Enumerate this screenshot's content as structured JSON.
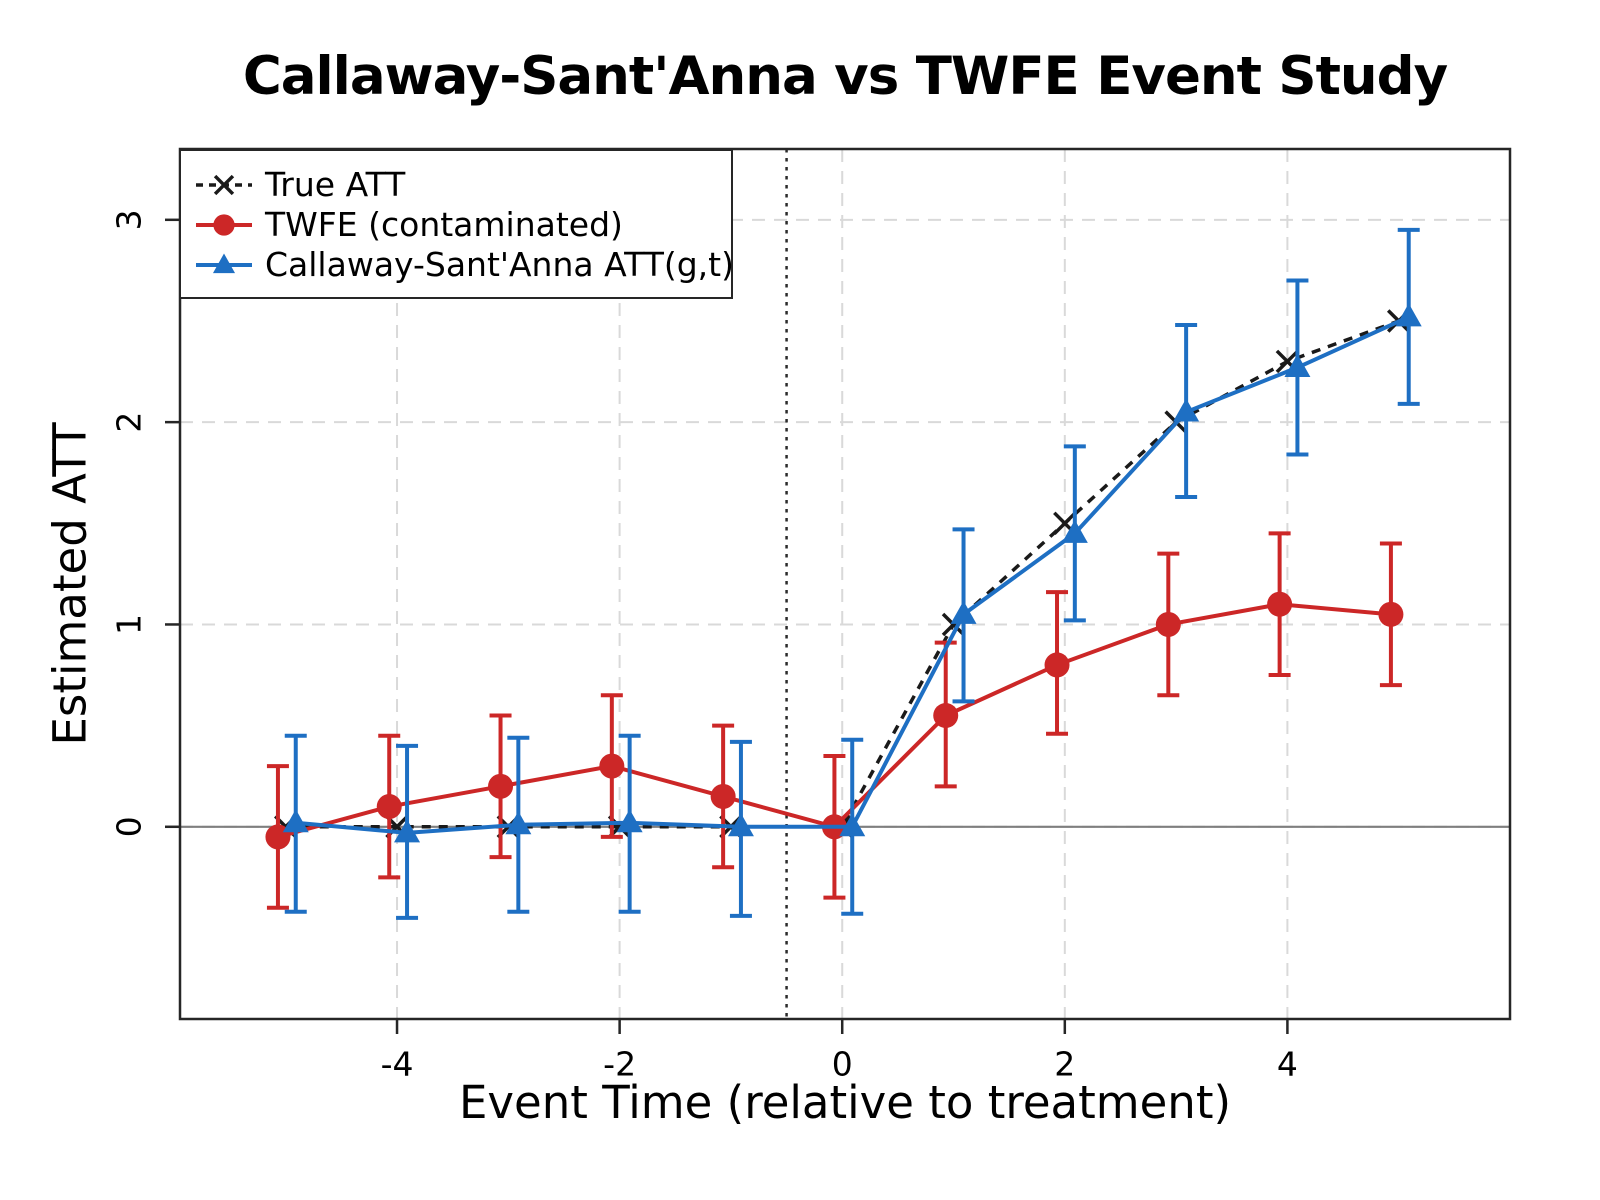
{
  "chart_data": {
    "type": "line",
    "title": "Callaway-Sant'Anna vs TWFE Event Study",
    "xlabel": "Event Time (relative to treatment)",
    "ylabel": "Estimated ATT",
    "xlim": [
      -5.95,
      6.0
    ],
    "ylim": [
      -0.95,
      3.35
    ],
    "x_ticks": [
      -4,
      -2,
      0,
      2,
      4
    ],
    "y_ticks": [
      0,
      1,
      2,
      3
    ],
    "grid": true,
    "legend_position": "top-left",
    "reference": {
      "zero_line_y": 0,
      "treatment_vline_x": -0.5
    },
    "event_time": [
      -5,
      -4,
      -3,
      -2,
      -1,
      0,
      1,
      2,
      3,
      4,
      5
    ],
    "series": [
      {
        "name": "True ATT",
        "line": "dashed",
        "marker": "x",
        "color": "#1a1a1a",
        "dodge": 0,
        "values": [
          0,
          0,
          0,
          0,
          0,
          0,
          1.0,
          1.5,
          2.0,
          2.3,
          2.5
        ]
      },
      {
        "name": "TWFE (contaminated)",
        "line": "solid",
        "marker": "circle",
        "color": "#cc2727",
        "dodge": -0.07,
        "values": [
          -0.05,
          0.1,
          0.2,
          0.3,
          0.15,
          0.0,
          0.55,
          0.8,
          1.0,
          1.1,
          1.05
        ],
        "ci_lo": [
          -0.4,
          -0.25,
          -0.15,
          -0.05,
          -0.2,
          -0.35,
          0.2,
          0.46,
          0.65,
          0.75,
          0.7
        ],
        "ci_hi": [
          0.3,
          0.45,
          0.55,
          0.65,
          0.5,
          0.35,
          0.91,
          1.16,
          1.35,
          1.45,
          1.4
        ]
      },
      {
        "name": "Callaway-Sant'Anna ATT(g,t)",
        "line": "solid",
        "marker": "triangle",
        "color": "#1e6fc3",
        "dodge": 0.09,
        "values": [
          0.02,
          -0.03,
          0.01,
          0.02,
          0.0,
          0.0,
          1.05,
          1.45,
          2.05,
          2.27,
          2.52
        ],
        "ci_lo": [
          -0.42,
          -0.45,
          -0.42,
          -0.42,
          -0.44,
          -0.43,
          0.62,
          1.02,
          1.63,
          1.84,
          2.09
        ],
        "ci_hi": [
          0.45,
          0.4,
          0.44,
          0.45,
          0.42,
          0.43,
          1.47,
          1.88,
          2.48,
          2.7,
          2.95
        ]
      }
    ],
    "style": {
      "frame_color": "#262626",
      "grid_color": "#d9d9d9",
      "zero_line_color": "#7f7f7f",
      "vline_color": "#2b2b2b",
      "tick_label_color": "#000000"
    }
  }
}
